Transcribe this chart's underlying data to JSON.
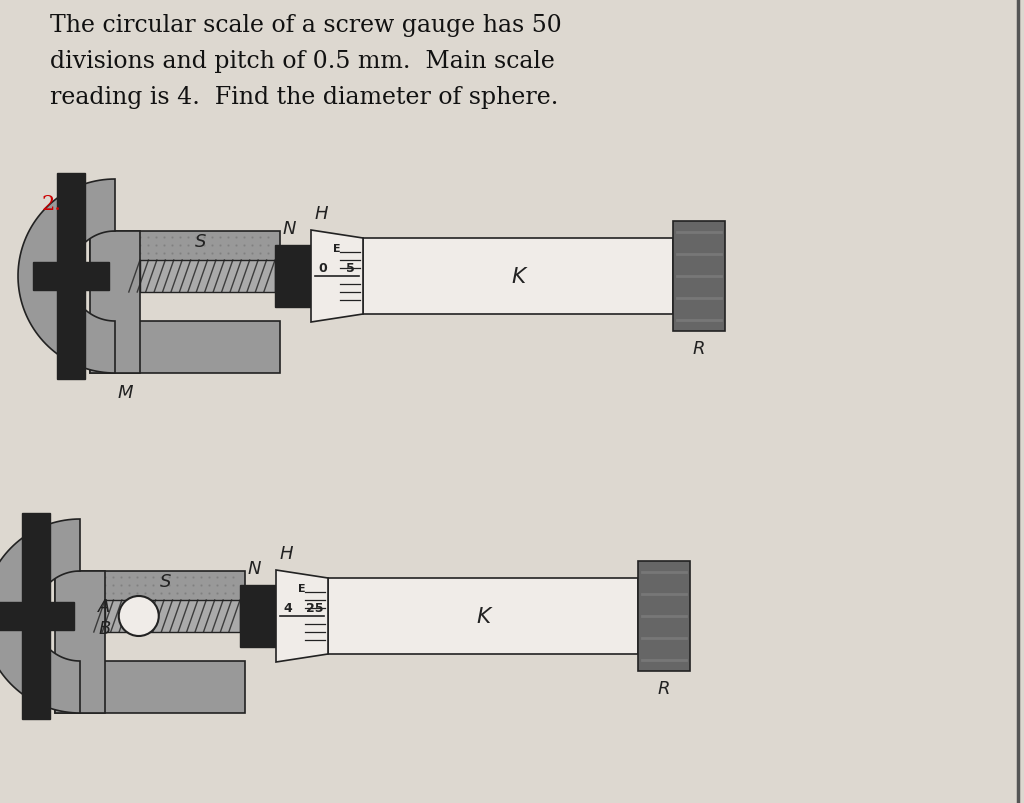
{
  "title_line1": "The circular scale of a screw gauge has 50",
  "title_line2": "divisions and pitch of 0.5 mm.  Main scale",
  "title_line3": "reading is 4.  Find the diameter of sphere.",
  "bg_color": "#ddd8d0",
  "text_color": "#111111",
  "dark_color": "#222222",
  "frame_color": "#888888",
  "gauge1": {
    "label_S": "S",
    "label_N": "N",
    "label_H": "H",
    "label_K": "K",
    "label_R": "R",
    "label_M": "M",
    "label_E": "E",
    "main_scale_val": "0",
    "circ_scale_val": "5",
    "has_sphere": false
  },
  "gauge2": {
    "label_A": "A",
    "label_B": "B",
    "label_S": "S",
    "label_N": "N",
    "label_H": "H",
    "label_K": "K",
    "label_R": "R",
    "label_E": "E",
    "main_scale_val": "4",
    "circ_scale_val": "25",
    "has_sphere": true
  },
  "annotation": "2.",
  "annotation_color": "#cc0000"
}
